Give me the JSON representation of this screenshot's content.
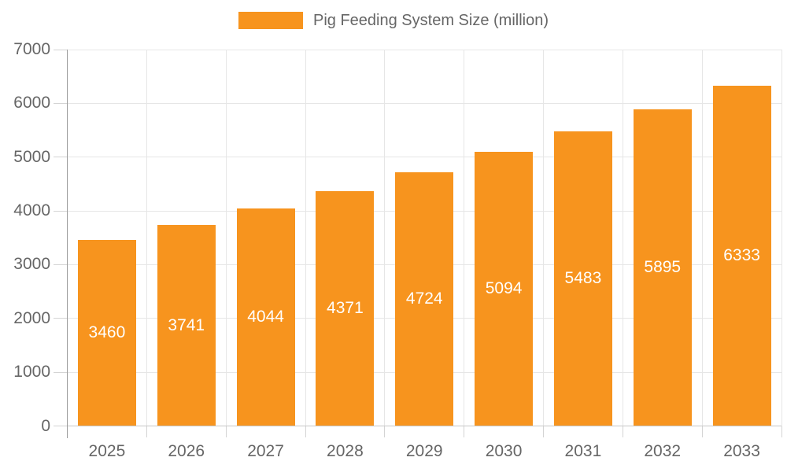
{
  "chart_data": {
    "type": "bar",
    "title": "Pig Feeding System Size (million)",
    "legend": [
      "Pig Feeding System Size (million)"
    ],
    "legend_position": "top",
    "categories": [
      "2025",
      "2026",
      "2027",
      "2028",
      "2029",
      "2030",
      "2031",
      "2032",
      "2033"
    ],
    "values": [
      3460,
      3741,
      4044,
      4371,
      4724,
      5094,
      5483,
      5895,
      6333
    ],
    "value_labels": [
      "3460",
      "3741",
      "4044",
      "4371",
      "4724",
      "5094",
      "5483",
      "5895",
      "6333"
    ],
    "xlabel": "",
    "ylabel": "",
    "ylim": [
      0,
      7000
    ],
    "ytick_step": 1000,
    "yticks": [
      "0",
      "1000",
      "2000",
      "3000",
      "4000",
      "5000",
      "6000",
      "7000"
    ],
    "grid": true,
    "colors": {
      "bar": "#F7941E",
      "value_label": "#FFFFFF",
      "axis_text": "#666666",
      "legend_text": "#666666",
      "gridline": "#E6E6E6",
      "tick": "#D4D4D4",
      "x_axis_line": "#C6C6C6",
      "y_axis_line": "#9B9B9B",
      "background": "#FFFFFF"
    }
  }
}
